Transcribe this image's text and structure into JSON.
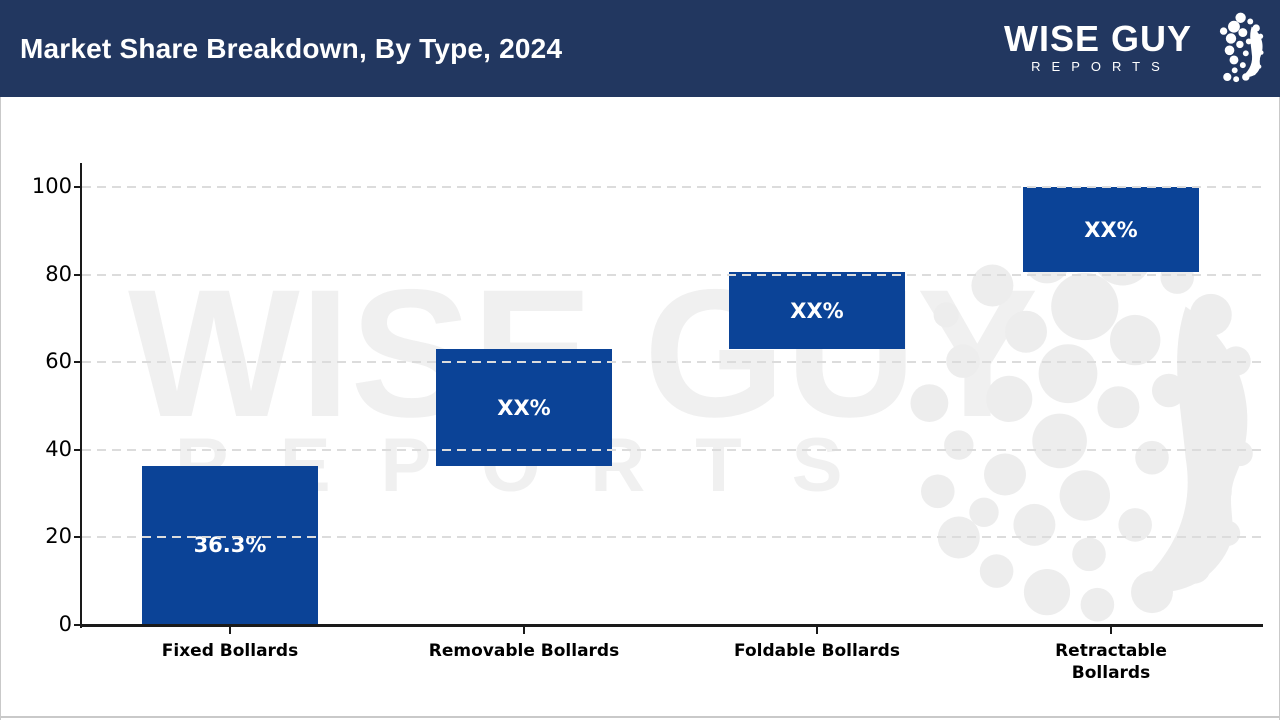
{
  "header": {
    "title": "Market Share Breakdown, By Type, 2024",
    "logo": {
      "line1": "WISE GUY",
      "line2": "REPORTS"
    }
  },
  "watermark": {
    "line1": "WISE GUY",
    "line2": "REPORTS"
  },
  "chart_data": {
    "type": "bar",
    "subtype": "floating-segment (waterfall-style market share)",
    "title": "Market Share Breakdown, By Type, 2024",
    "categories": [
      "Fixed Bollards",
      "Removable Bollards",
      "Foldable Bollards",
      "Retractable\nBollards"
    ],
    "segments": [
      {
        "category": "Fixed Bollards",
        "label": "36.3%",
        "start": 0,
        "end": 36.3
      },
      {
        "category": "Removable Bollards",
        "label": "XX%",
        "start": 36.3,
        "end": 63.0
      },
      {
        "category": "Foldable Bollards",
        "label": "XX%",
        "start": 63.0,
        "end": 80.5
      },
      {
        "category": "Retractable Bollards",
        "label": "XX%",
        "start": 80.5,
        "end": 100
      }
    ],
    "y_ticks": [
      0,
      20,
      40,
      60,
      80,
      100
    ],
    "ylim": [
      0,
      100
    ],
    "xlabel": "",
    "ylabel": "",
    "grid": "horizontal dashed",
    "legend": "none",
    "bar_color": "#0b4397",
    "label_color": "#ffffff"
  },
  "colors": {
    "header_bg": "#223760",
    "title_text": "#ffffff",
    "bar": "#0b4397",
    "grid": "#dcdcdc",
    "axis": "#1a1a1a",
    "watermark": "#f0f0f0",
    "frame": "#c9c9c9"
  }
}
